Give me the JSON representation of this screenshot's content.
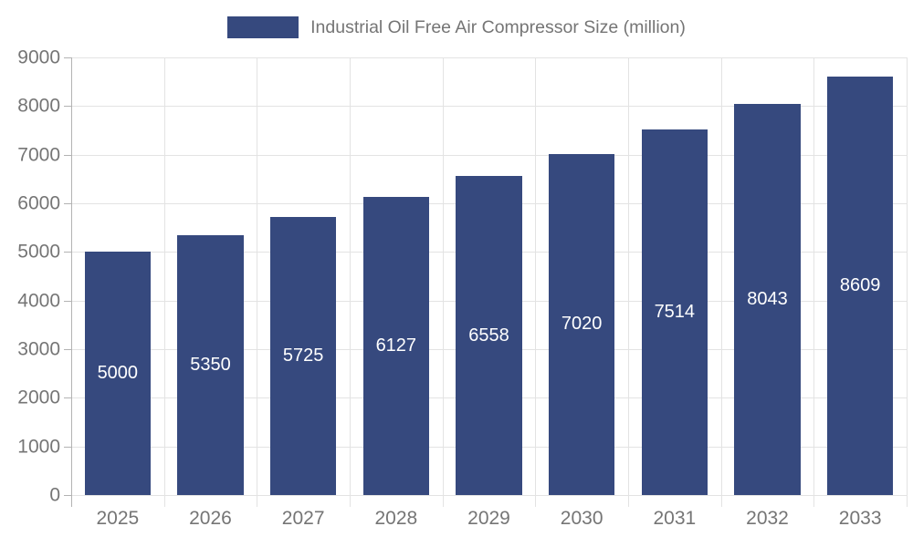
{
  "legend": {
    "label": "Industrial Oil Free Air Compressor Size (million)"
  },
  "chart_data": {
    "type": "bar",
    "title": "Industrial Oil Free Air Compressor Size (million)",
    "categories": [
      "2025",
      "2026",
      "2027",
      "2028",
      "2029",
      "2030",
      "2031",
      "2032",
      "2033"
    ],
    "values": [
      5000,
      5350,
      5725,
      6127,
      6558,
      7020,
      7514,
      8043,
      8609
    ],
    "xlabel": "",
    "ylabel": "",
    "ylim": [
      0,
      9000
    ],
    "ytick_step": 1000,
    "grid": true,
    "legend_position": "top-center",
    "colors": {
      "bar": "#36497e",
      "bar_value_text": "#ffffff",
      "axis_text": "#757575",
      "gridline": "#e3e3e3",
      "axis_line": "#b3b3b3",
      "background": "#ffffff"
    }
  }
}
